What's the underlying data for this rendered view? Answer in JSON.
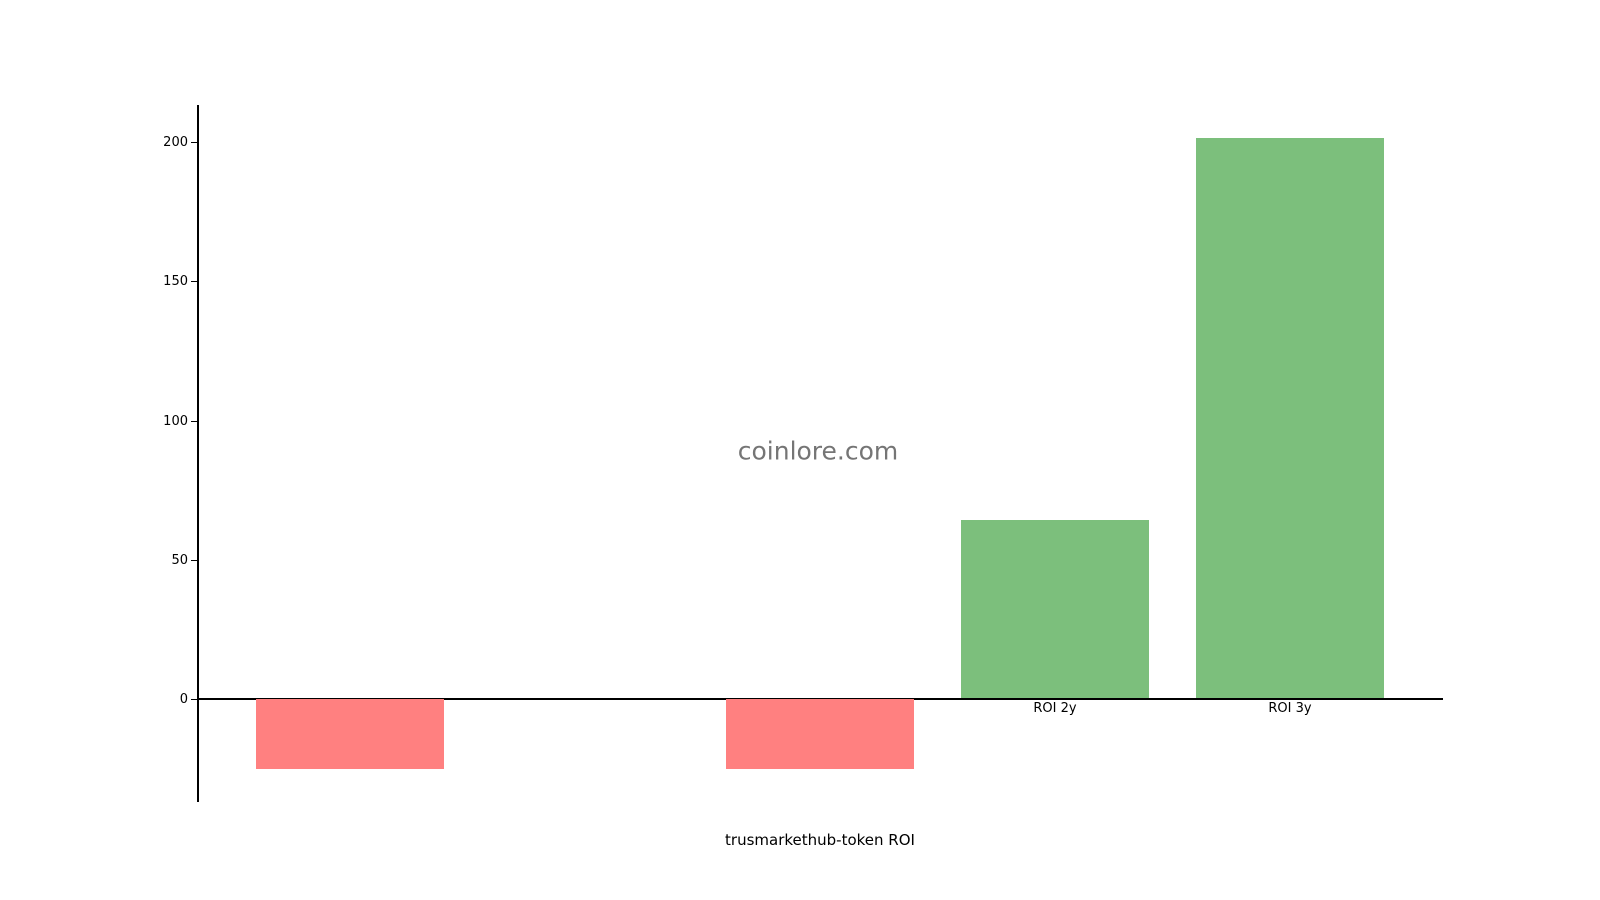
{
  "page": {
    "background": "#ffffff"
  },
  "chart_data": {
    "type": "bar",
    "title": "trusmarkethub-token ROI",
    "watermark": "coinlore.com",
    "categories": [
      "",
      "",
      "",
      "ROI 2y",
      "ROI 3y"
    ],
    "values": [
      -25,
      0,
      -25,
      64,
      201
    ],
    "bar_colors": [
      "#ff8080",
      "#ff8080",
      "#ff8080",
      "#7cbf7c",
      "#7cbf7c"
    ],
    "negative_color": "#ff8080",
    "positive_color": "#7cbf7c",
    "y_ticks": [
      0,
      50,
      100,
      150,
      200
    ],
    "ylim": [
      -37,
      213
    ],
    "xlabel": "trusmarkethub-token ROI",
    "ylabel": "",
    "grid": false,
    "legend_position": "none",
    "axis_color": "#000000",
    "tick_text_color": "#000000",
    "watermark_color": "#757575"
  }
}
